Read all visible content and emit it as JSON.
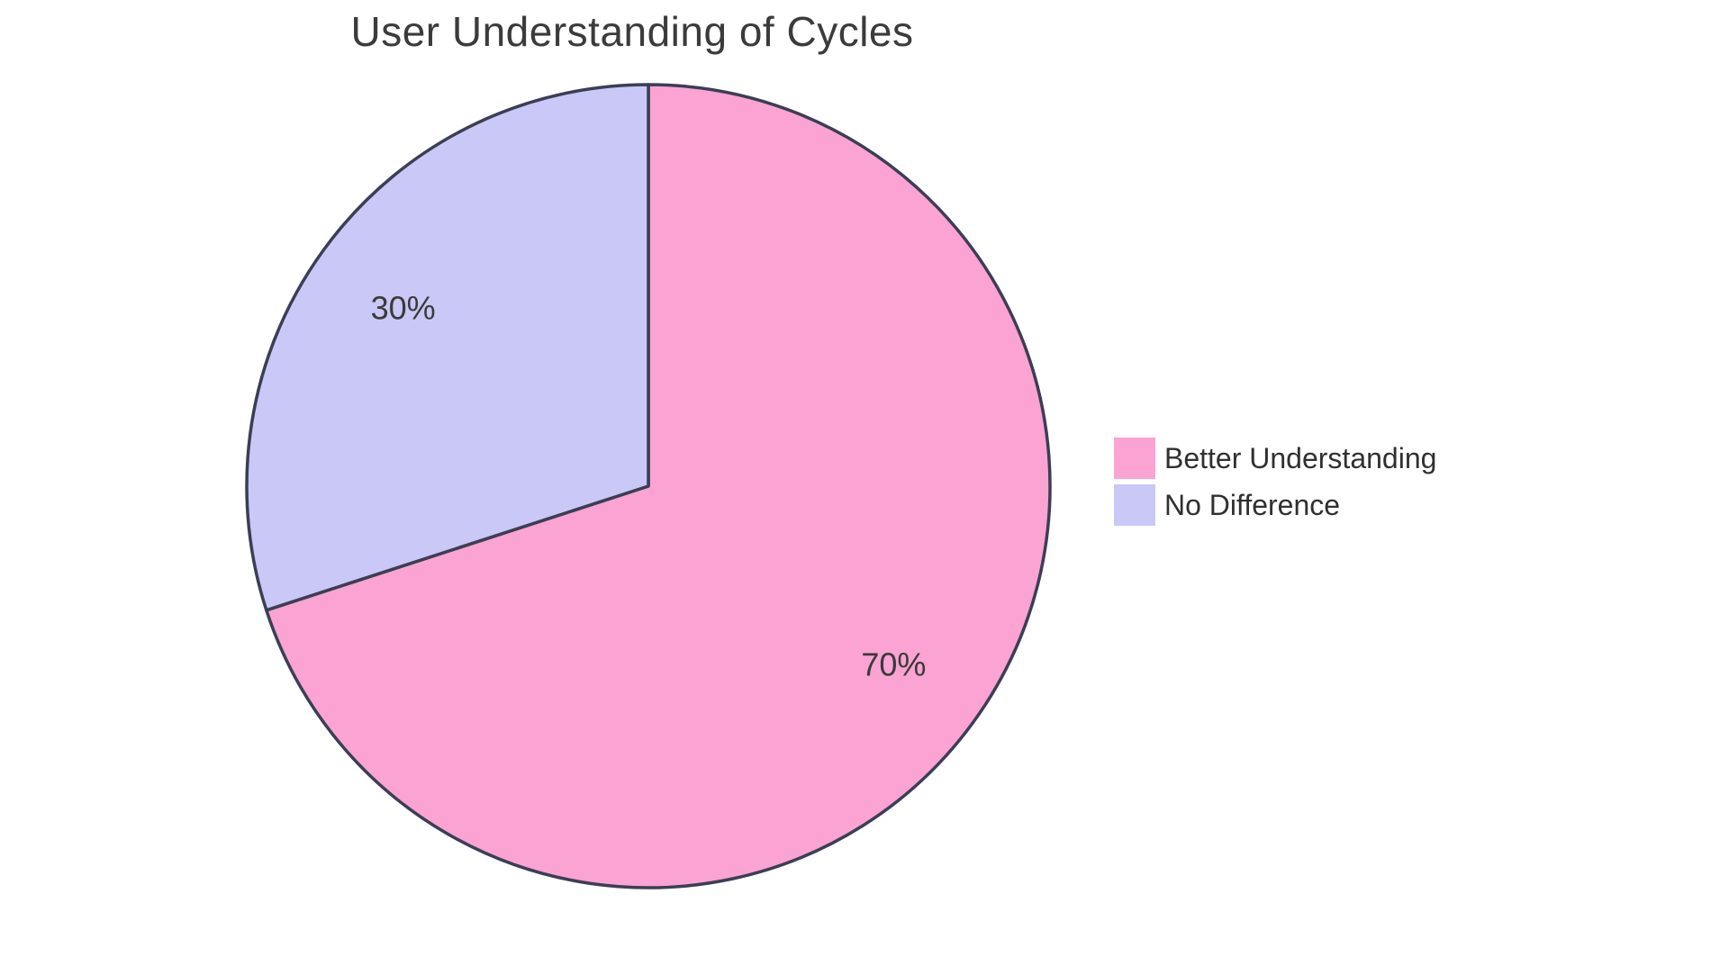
{
  "page": {
    "background": "#FFFFFF"
  },
  "chart_data": {
    "type": "pie",
    "title": "User Understanding of Cycles",
    "labels": [
      "Better Understanding",
      "No Difference"
    ],
    "values": [
      70,
      30
    ],
    "slice_labels": [
      "70%",
      "30%"
    ],
    "colors": [
      "#FBA3D2",
      "#C9C8F6"
    ],
    "stroke_color": "#3B3E54",
    "stroke_width": 3.5,
    "start_angle": "12-o-clock",
    "direction": "clockwise",
    "legend_position": "right",
    "label_text_color": "#3A3A3A",
    "grid": false
  }
}
